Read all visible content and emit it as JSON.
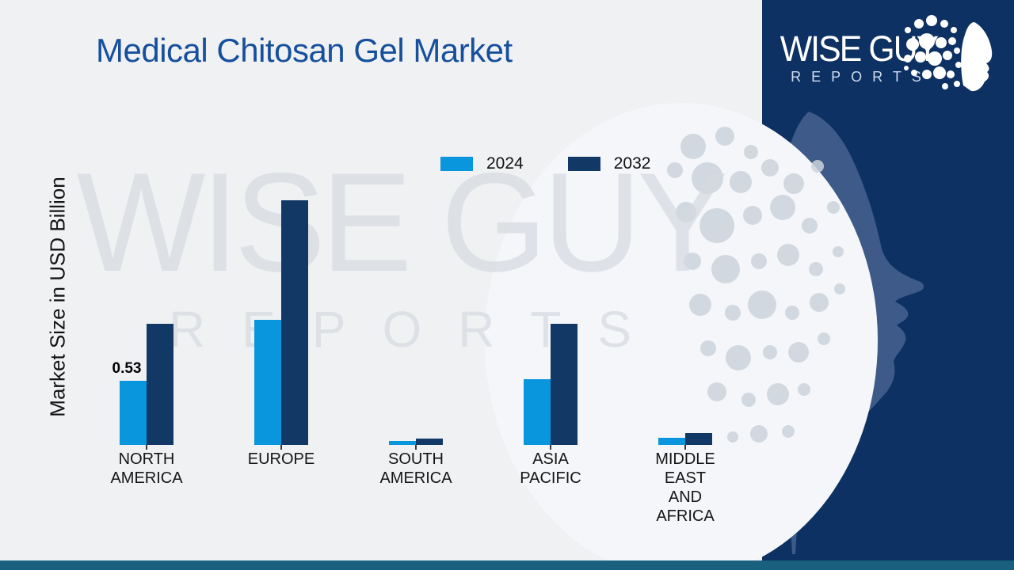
{
  "header": {
    "title": "Medical Chitosan Gel Market"
  },
  "logo": {
    "line1": "WISE GUY",
    "line2": "REPORTS"
  },
  "watermark": {
    "line1": "WISE GUY",
    "line2": "REPORTS"
  },
  "chart_data": {
    "type": "bar",
    "title": "Medical Chitosan Gel Market",
    "xlabel": "",
    "ylabel": "Market Size in USD Billion",
    "unit": "USD Billion",
    "categories": [
      "NORTH AMERICA",
      "EUROPE",
      "SOUTH AMERICA",
      "ASIA PACIFIC",
      "MIDDLE EAST AND AFRICA"
    ],
    "category_label_lines": [
      [
        "NORTH",
        "AMERICA"
      ],
      [
        "EUROPE"
      ],
      [
        "SOUTH",
        "AMERICA"
      ],
      [
        "ASIA",
        "PACIFIC"
      ],
      [
        "MIDDLE",
        "EAST",
        "AND",
        "AFRICA"
      ]
    ],
    "series": [
      {
        "name": "2024",
        "color": "#0a96dc",
        "values": [
          0.53,
          1.03,
          0.03,
          0.54,
          0.06
        ]
      },
      {
        "name": "2032",
        "color": "#123866",
        "values": [
          1.0,
          2.02,
          0.05,
          1.0,
          0.1
        ]
      }
    ],
    "bar_labels": [
      {
        "category_index": 0,
        "series_index": 0,
        "text": "0.53"
      }
    ],
    "ylim": [
      0,
      2.2
    ],
    "grid": false,
    "legend_position": "top",
    "colors": {
      "accent_light_blue": "#0a96dc",
      "accent_navy": "#123866",
      "logo_panel_navy": "#0d3163",
      "footer_teal": "#19607f",
      "title_blue": "#164f9c"
    }
  }
}
